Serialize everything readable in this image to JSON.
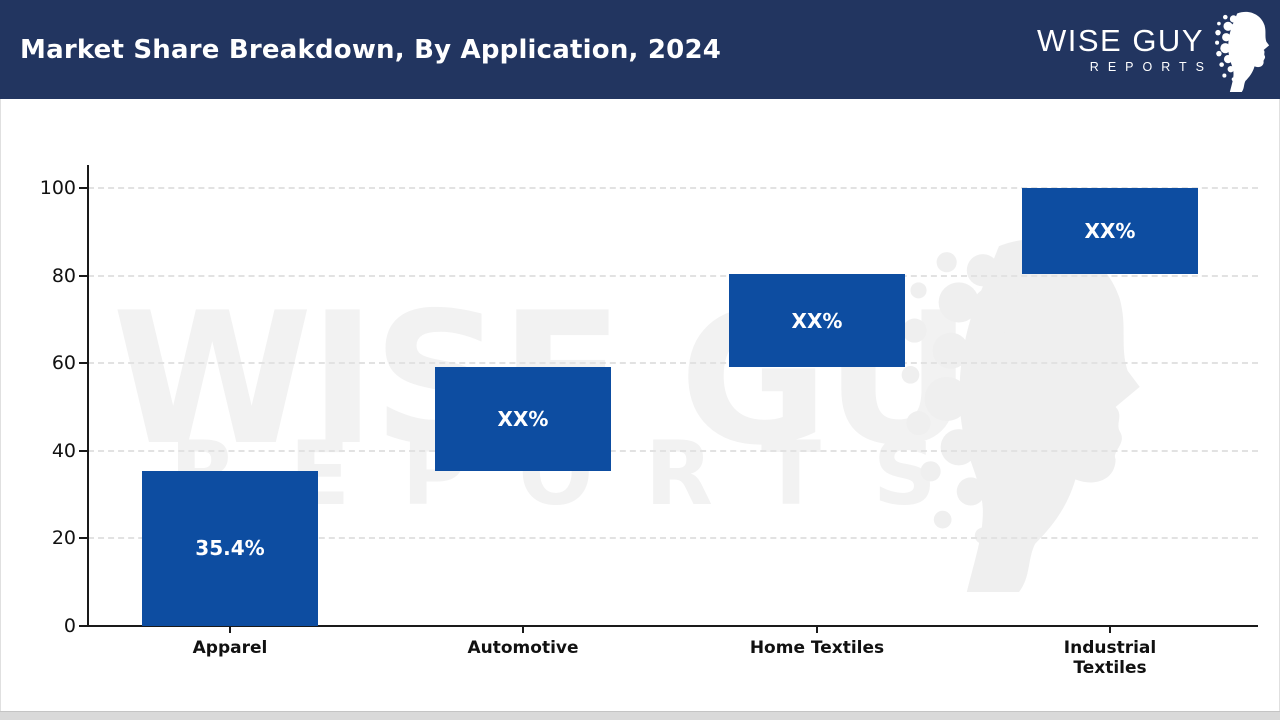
{
  "header": {
    "title": "Market Share Breakdown, By Application, 2024",
    "logo": {
      "line1": "WISE GUY",
      "line2": "REPORTS"
    }
  },
  "watermark": {
    "line1": "WISE GUY",
    "line2": "REPORTS"
  },
  "chart_data": {
    "type": "bar",
    "subtype": "waterfall",
    "title": "Market Share Breakdown, By Application, 2024",
    "unit": "%",
    "categories": [
      "Apparel",
      "Automotive",
      "Home Textiles",
      "Industrial Textiles"
    ],
    "segments": [
      {
        "category": "Apparel",
        "start": 0,
        "end": 35.4,
        "label": "35.4%"
      },
      {
        "category": "Automotive",
        "start": 35.4,
        "end": 59.1,
        "label": "XX%"
      },
      {
        "category": "Home Textiles",
        "start": 59.1,
        "end": 80.3,
        "label": "XX%"
      },
      {
        "category": "Industrial Textiles",
        "start": 80.3,
        "end": 100,
        "label": "XX%"
      }
    ],
    "ylim": [
      0,
      100
    ],
    "yticks": [
      0,
      20,
      40,
      60,
      80,
      100
    ],
    "xlabel": "",
    "ylabel": "",
    "grid": "horizontal-dashed",
    "legend": "none"
  },
  "colors": {
    "header_bg": "#223560",
    "bar": "#0d4da1",
    "bar_label": "#ffffff",
    "axis": "#1a1a1a",
    "grid": "#e2e2e2",
    "watermark": "#f2f2f2",
    "watermark_face": "#efefef",
    "footer": "#d9d9d9"
  }
}
